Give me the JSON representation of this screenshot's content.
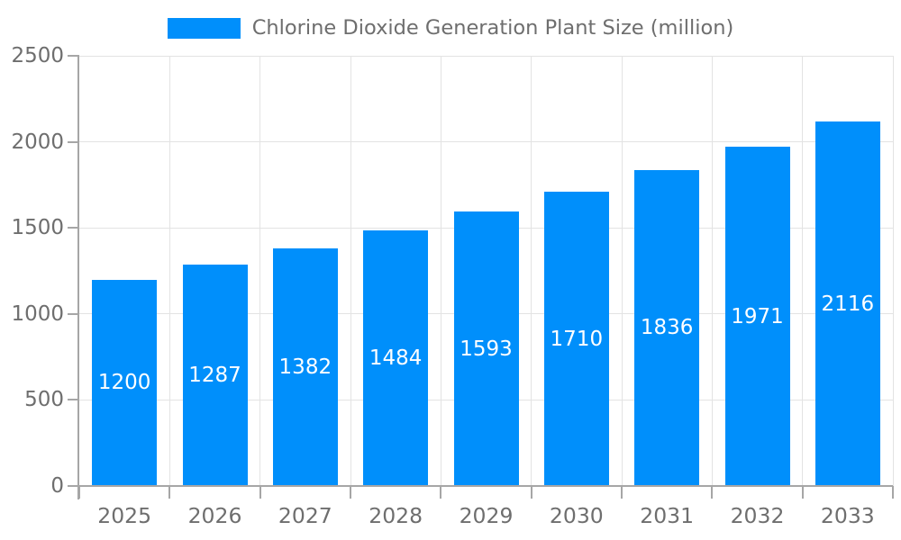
{
  "chart_data": {
    "type": "bar",
    "title": "Chlorine Dioxide Generation Plant Size (million)",
    "categories": [
      "2025",
      "2026",
      "2027",
      "2028",
      "2029",
      "2030",
      "2031",
      "2032",
      "2033"
    ],
    "values": [
      1200,
      1287,
      1382,
      1484,
      1593,
      1710,
      1836,
      1971,
      2116
    ],
    "xlabel": "",
    "ylabel": "",
    "ylim": [
      0,
      2500
    ],
    "ytick_step": 500,
    "grid": true,
    "legend_position": "top-center",
    "value_label_position": "inside-center"
  },
  "theme": {
    "bar_color": "#008FFB",
    "grid_color": "#e3e3e3",
    "axis_color": "#a6a6a6",
    "label_color": "#6e6e6e",
    "value_label_color": "#ffffff",
    "background": "#ffffff"
  }
}
